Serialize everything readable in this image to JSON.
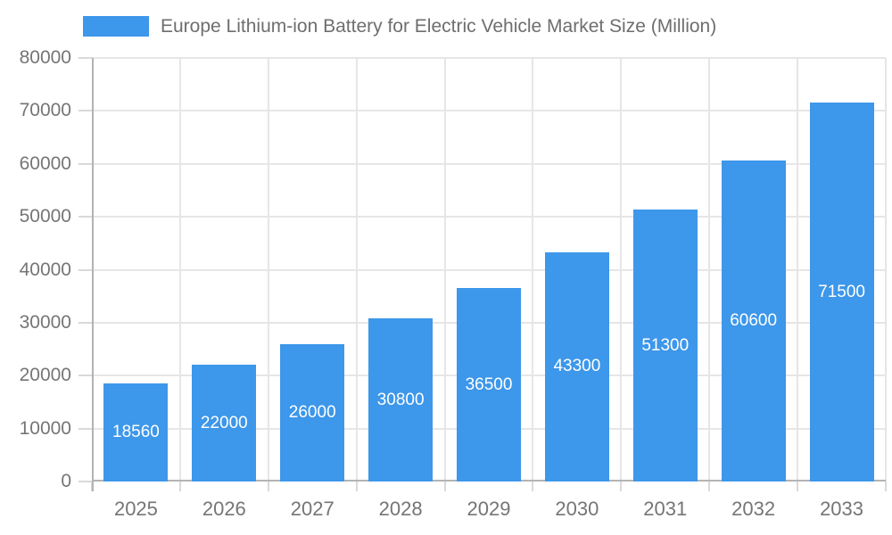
{
  "chart_data": {
    "type": "bar",
    "series_name": "Europe Lithium-ion Battery for Electric Vehicle Market Size (Million)",
    "categories": [
      "2025",
      "2026",
      "2027",
      "2028",
      "2029",
      "2030",
      "2031",
      "2032",
      "2033"
    ],
    "values": [
      18560,
      22000,
      26000,
      30800,
      36500,
      43300,
      51300,
      60600,
      71500
    ],
    "title": "",
    "xlabel": "",
    "ylabel": "",
    "ylim": [
      0,
      80000
    ],
    "yticks": [
      0,
      10000,
      20000,
      30000,
      40000,
      50000,
      60000,
      70000,
      80000
    ],
    "grid": true,
    "legend_position": "top-left",
    "value_labels_inside_bars": true,
    "colors": {
      "bar": "#3d97ea",
      "bar_value_text": "#ffffff",
      "axis_text": "#757575",
      "legend_text": "#6e6e6e",
      "gridline": "#e6e6e6",
      "axis_line": "#b3b3b3",
      "tick": "#d9d9d9"
    }
  }
}
